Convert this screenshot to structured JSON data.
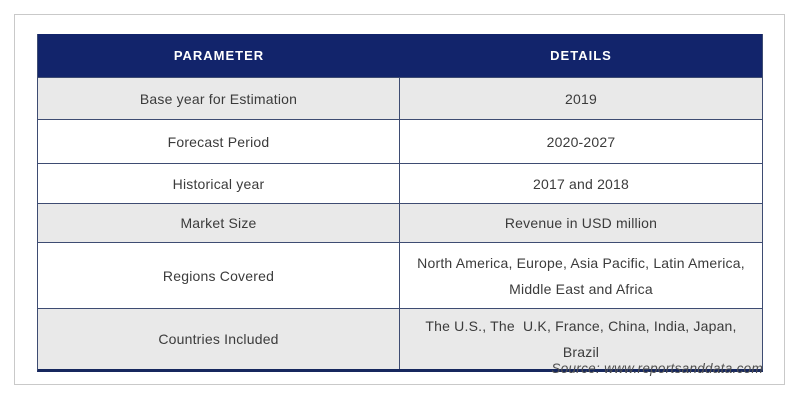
{
  "table": {
    "columns": [
      "PARAMETER",
      "DETAILS"
    ],
    "rows": [
      {
        "parameter": "Base year for Estimation",
        "details": "2019",
        "shade": "gray"
      },
      {
        "parameter": "Forecast Period",
        "details": "2020-2027",
        "shade": "white"
      },
      {
        "parameter": "Historical year",
        "details": "2017 and 2018",
        "shade": "white"
      },
      {
        "parameter": "Market Size",
        "details": "Revenue in USD million",
        "shade": "gray"
      },
      {
        "parameter": "Regions Covered",
        "details": "North America, Europe, Asia Pacific, Latin America, Middle East and Africa",
        "shade": "white"
      },
      {
        "parameter": "Countries Included",
        "details": "The U.S., The  U.K, France, China, India, Japan, Brazil",
        "shade": "gray"
      }
    ]
  },
  "source": {
    "label": "Source: www.reportsanddata.com"
  },
  "colors": {
    "header_bg": "#12246b",
    "header_text": "#ffffff",
    "row_alt_bg": "#e9e9e9",
    "row_bg": "#ffffff",
    "cell_border": "#3e4c72",
    "table_bottom_border": "#16275e",
    "frame_border": "#c9c9c9",
    "body_text": "#3b3b3b",
    "source_text": "#4f4f4f"
  }
}
